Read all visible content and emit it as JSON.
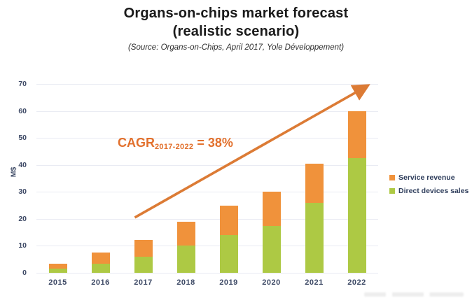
{
  "title": {
    "line1": "Organs-on-chips market forecast",
    "line2": "(realistic scenario)",
    "source": "(Source: Organs-on-Chips, April 2017, Yole Développement)"
  },
  "chart_data": {
    "type": "bar",
    "stacked": true,
    "title": "Organs-on-chips market forecast (realistic scenario)",
    "categories": [
      "2015",
      "2016",
      "2017",
      "2018",
      "2019",
      "2020",
      "2021",
      "2022"
    ],
    "series": [
      {
        "name": "Direct devices sales",
        "color": "#adc944",
        "values": [
          1.5,
          3.5,
          6,
          10,
          14,
          17.5,
          26,
          42.5
        ]
      },
      {
        "name": "Service revenue",
        "color": "#f0923b",
        "values": [
          1.8,
          3.9,
          6.2,
          9,
          11,
          12.5,
          14.5,
          17.5
        ]
      }
    ],
    "totals": [
      3.3,
      7.4,
      12.2,
      19,
      25,
      30,
      40.5,
      60
    ],
    "xlabel": "",
    "ylabel": "M$",
    "ylim": [
      0,
      70
    ],
    "ytick_step": 10,
    "grid": true,
    "legend_position": "right",
    "annotation": {
      "prefix": "CAGR",
      "subscript": "2017-2022",
      "suffix": " = 38%",
      "color": "#e2702c",
      "arrow": {
        "from_year": "2017",
        "from_value": 20.5,
        "from_dx": -12,
        "to_year": "2022",
        "to_value": 69,
        "to_dx": 13,
        "color": "#dc7b35"
      }
    }
  },
  "legend": {
    "items": [
      {
        "label": "Service revenue",
        "color": "#f0923b"
      },
      {
        "label": "Direct devices sales",
        "color": "#adc944"
      }
    ]
  },
  "colors": {
    "service_revenue": "#f0923b",
    "direct_devices_sales": "#adc944",
    "annotation_orange": "#e2702c",
    "axis_text": "#3e4a66",
    "gridline": "#e9ebf3"
  }
}
